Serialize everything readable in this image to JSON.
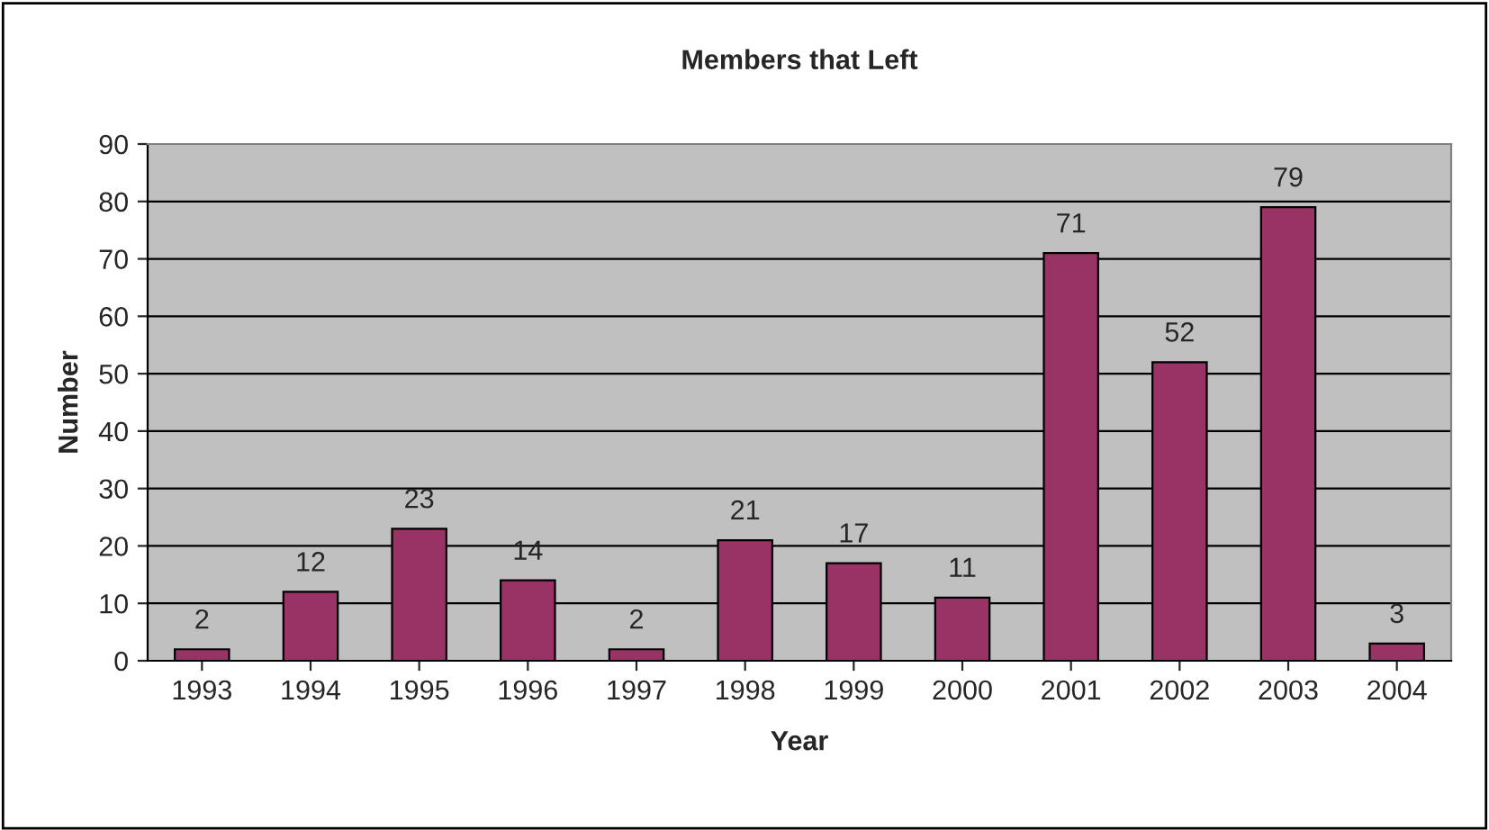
{
  "chart_data": {
    "type": "bar",
    "title": "Members that Left",
    "xlabel": "Year",
    "ylabel": "Number",
    "categories": [
      "1993",
      "1994",
      "1995",
      "1996",
      "1997",
      "1998",
      "1999",
      "2000",
      "2001",
      "2002",
      "2003",
      "2004"
    ],
    "values": [
      2,
      12,
      23,
      14,
      2,
      21,
      17,
      11,
      71,
      52,
      79,
      3
    ],
    "color": "#993366",
    "ylim": [
      0,
      90
    ],
    "yticks": [
      0,
      10,
      20,
      30,
      40,
      50,
      60,
      70,
      80,
      90
    ],
    "grid": "y",
    "data_labels": true
  }
}
